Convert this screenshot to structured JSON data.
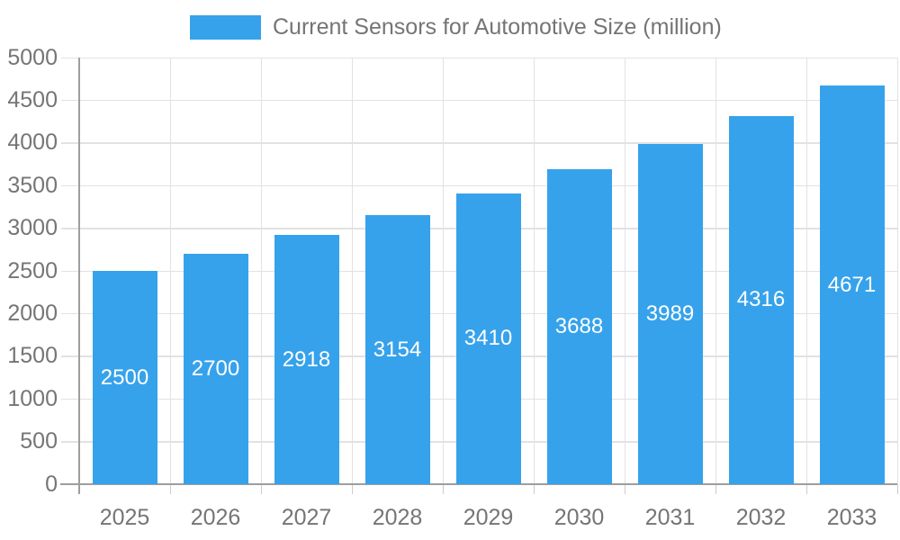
{
  "chart_data": {
    "type": "bar",
    "title": "Current Sensors for Automotive Size (million)",
    "categories": [
      "2025",
      "2026",
      "2027",
      "2028",
      "2029",
      "2030",
      "2031",
      "2032",
      "2033"
    ],
    "values": [
      2500,
      2700,
      2918,
      3154,
      3410,
      3688,
      3989,
      4316,
      4671
    ],
    "series_name": "Current Sensors for Automotive Size (million)",
    "xlabel": "",
    "ylabel": "",
    "ylim": [
      0,
      5000
    ],
    "ytick_step": 500,
    "yticks": [
      0,
      500,
      1000,
      1500,
      2000,
      2500,
      3000,
      3500,
      4000,
      4500,
      5000
    ],
    "grid": "horizontal and vertical light gray gridlines",
    "legend_position": "top",
    "value_labels": "white, centered inside bars",
    "colors": {
      "bar": "#36a2eb",
      "value_label": "#ffffff",
      "axis_text": "#757575",
      "axis_line": "#9e9e9e",
      "gridline": "#e2e2e2",
      "tick": "#cccccc",
      "background": "#ffffff"
    }
  }
}
